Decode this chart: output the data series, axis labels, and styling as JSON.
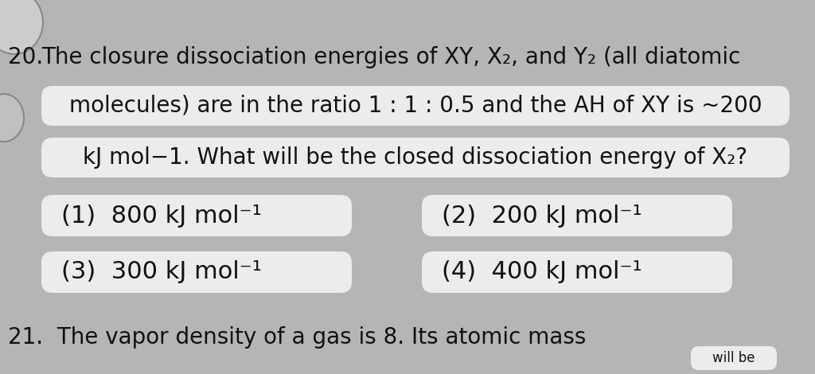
{
  "bg_color": "#b5b5b5",
  "pill_bg": "#ececec",
  "text_color": "#111111",
  "q_num": "20.",
  "line1": "The closure dissociation energies of XY, X₂, and Y₂ (all diatomic",
  "pill_line2": "molecules) are in the ratio 1 : 1 : 0.5 and the AH of XY is ~200",
  "pill_line3": "kJ mol−1. What will be the closed dissociation energy of X₂?",
  "opt1": "(1)  800 kJ mol⁻¹",
  "opt2": "(2)  200 kJ mol⁻¹",
  "opt3": "(3)  300 kJ mol⁻¹",
  "opt4": "(4)  400 kJ mol⁻¹",
  "bottom_line": "21.  The vapor density of a gas is 8. Its atomic mass",
  "will_be": "will be",
  "font_size_main": 20,
  "font_size_opt": 22
}
